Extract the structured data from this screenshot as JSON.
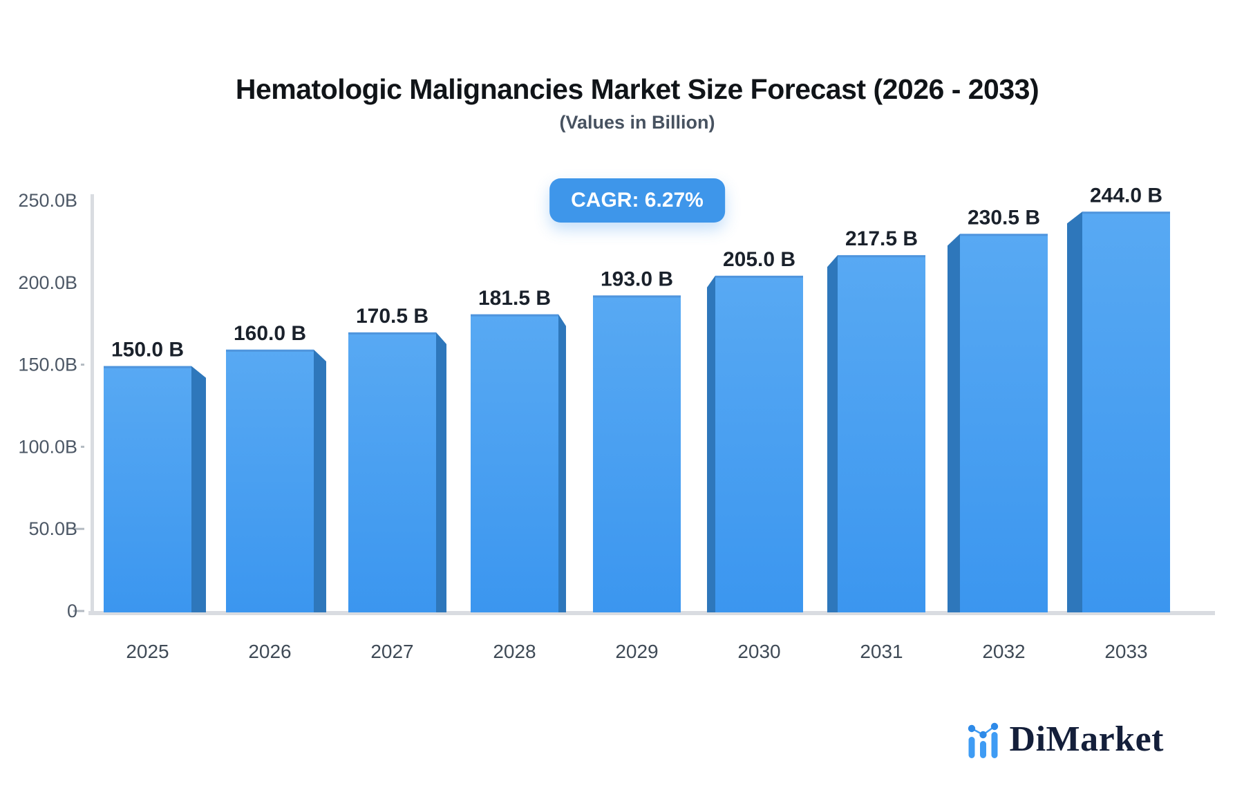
{
  "title": "Hematologic Malignancies Market Size Forecast (2026 - 2033)",
  "subtitle": "(Values in Billion)",
  "cagr_badge": "CAGR: 6.27%",
  "logo": {
    "icon": "bar-chart-logo-icon",
    "text": "DiMarket"
  },
  "colors": {
    "background": "#ffffff",
    "bar_front_top": "#58a9f3",
    "bar_front_bottom": "#3b96ef",
    "bar_top_edge": "#4c8fd6",
    "bar_side": "#2e77bb",
    "badge_bg": "#3e96ea",
    "axis_line": "#d9dce1",
    "tick_mark": "#b3bac1",
    "title_text": "#101418",
    "subtitle_text": "#475260",
    "axis_label": "#4d5866",
    "year_label": "#3f4a56",
    "value_label": "#1a212b",
    "logo_text": "#141f3a",
    "logo_icon_bar": "#3f9cf4",
    "logo_icon_dot": "#2e8ae8"
  },
  "chart_data": {
    "type": "bar",
    "title": "Hematologic Malignancies Market Size Forecast (2026 - 2033)",
    "subtitle": "(Values in Billion)",
    "annotation": "CAGR: 6.27%",
    "categories": [
      "2025",
      "2026",
      "2027",
      "2028",
      "2029",
      "2030",
      "2031",
      "2032",
      "2033"
    ],
    "values": [
      150.0,
      160.0,
      170.5,
      181.5,
      193.0,
      205.0,
      217.5,
      230.5,
      244.0
    ],
    "value_labels": [
      "150.0 B",
      "160.0 B",
      "170.5 B",
      "181.5 B",
      "193.0 B",
      "205.0 B",
      "217.5 B",
      "230.5 B",
      "244.0 B"
    ],
    "y_tick_labels": [
      "0",
      "50.0B",
      "100.0B",
      "150.0B",
      "200.0B",
      "250.0B"
    ],
    "y_tick_values": [
      0,
      50,
      100,
      150,
      200,
      250
    ],
    "ylim": [
      0,
      250
    ],
    "grid": false,
    "legend": false,
    "style": "3d-extruded-bars"
  }
}
